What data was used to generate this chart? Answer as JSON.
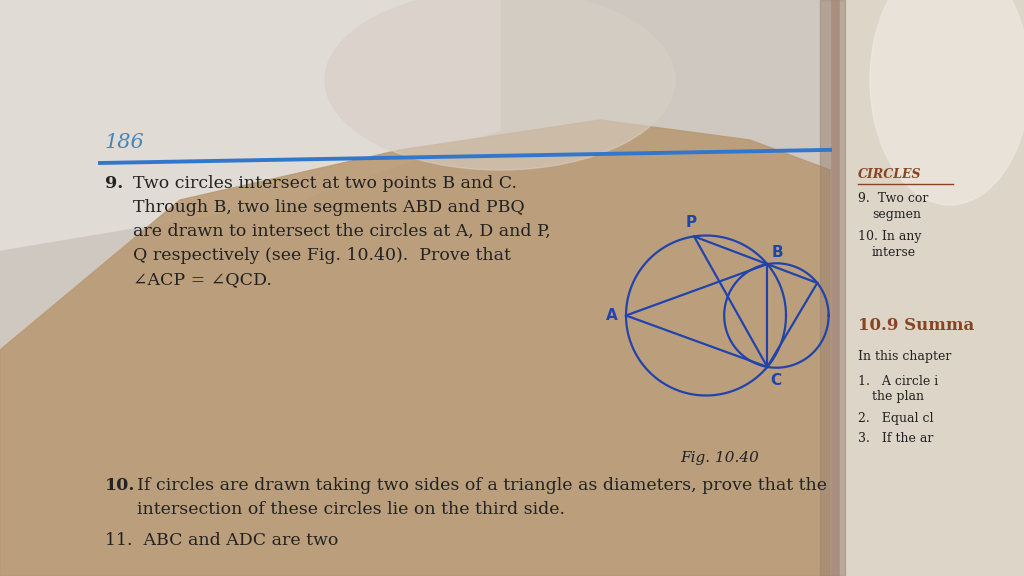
{
  "bg_left": "#d8d0c8",
  "bg_center_shadow": "#c4a882",
  "bg_right_page": "#e8ddd0",
  "page_number": "186",
  "page_num_color": "#4488bb",
  "line_color_blue": "#3377cc",
  "text_color": "#222222",
  "label_color": "#2244aa",
  "circle_color": "#2244aa",
  "right_header": "CIRCLES",
  "right_header_color": "#884422",
  "fig_caption": "Fig. 10.40",
  "summary_color": "#884422",
  "line9_1": "Two circles intersect at two points B and C.",
  "line9_2": "Through B, two line segments ABD and PBQ",
  "line9_3": "are drawn to intersect the circles at A, D and P,",
  "line9_4": "Q respectively (see Fig. 10.40).  Prove that",
  "line9_5": "∠ACP = ∠QCD.",
  "line10_1": "If circles are drawn taking two sides of a triangle as diameters, prove that the",
  "line10_2": "intersection of these circles lie on the third side.",
  "line11": "ABC and ADC are two",
  "right9_1": "Two cor",
  "right9_2": "segmen",
  "right10_1": "In any",
  "right10_2": "interse",
  "right_summary": "10.9 Summa",
  "right_chapter": "In this chapter",
  "right_1a": "A circle i",
  "right_1b": "the plan",
  "right_2": "Equal cl",
  "right_3": "If the ar"
}
